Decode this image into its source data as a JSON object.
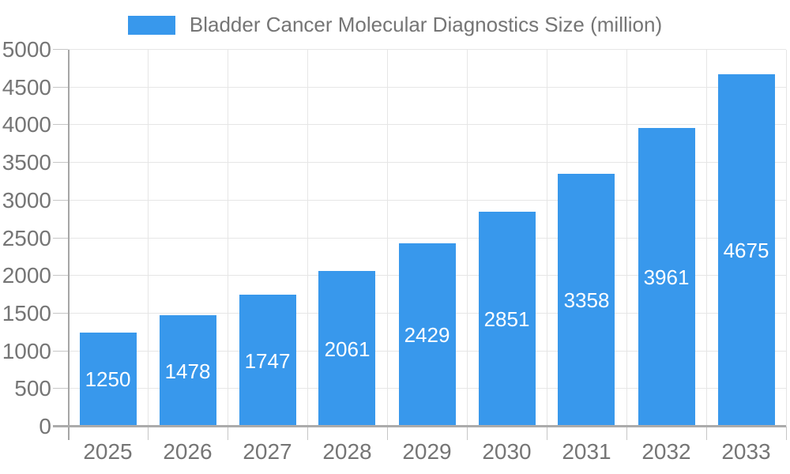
{
  "chart_data": {
    "type": "bar",
    "title": "Bladder Cancer Molecular Diagnostics Size (million)",
    "categories": [
      "2025",
      "2026",
      "2027",
      "2028",
      "2029",
      "2030",
      "2031",
      "2032",
      "2033"
    ],
    "series": [
      {
        "name": "Bladder Cancer Molecular Diagnostics Size (million)",
        "values": [
          1250,
          1478,
          1747,
          2061,
          2429,
          2851,
          3358,
          3961,
          4675
        ]
      }
    ],
    "value_labels": [
      1250,
      1478,
      1747,
      2061,
      2429,
      2851,
      3358,
      3961,
      4675
    ],
    "value_label_position": "inside-center",
    "xlabel": "",
    "ylabel": "",
    "ylim": [
      0,
      5000
    ],
    "yticks": [
      0,
      500,
      1000,
      1500,
      2000,
      2500,
      3000,
      3500,
      4000,
      4500,
      5000
    ],
    "grid": true,
    "legend_position": "top",
    "colors": {
      "bar": "#3898EC",
      "value_label": "#FFFFFF",
      "axis_line": "#A6A6A6",
      "tick_line": "#C6C6C6",
      "grid_line": "#E6E6E6",
      "text": "#757575",
      "background": "#FFFFFF"
    }
  }
}
